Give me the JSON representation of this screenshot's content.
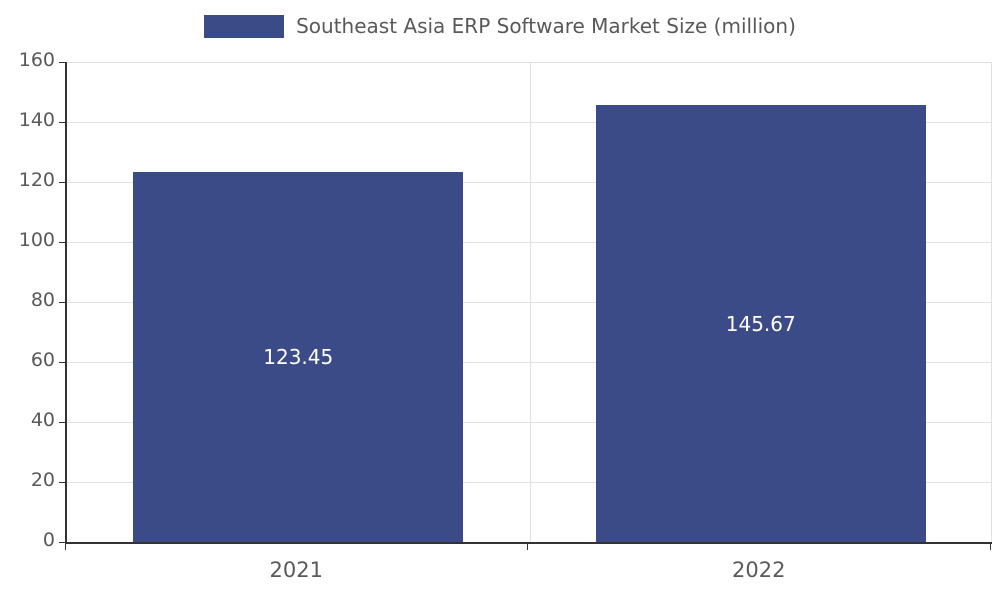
{
  "chart_data": {
    "type": "bar",
    "title": "Southeast Asia ERP Software Market Size (million)",
    "categories": [
      "2021",
      "2022"
    ],
    "values": [
      123.45,
      145.67
    ],
    "value_labels": [
      "123.45",
      "145.67"
    ],
    "xlabel": "",
    "ylabel": "",
    "ylim": [
      0,
      160
    ],
    "ytick_step": 20,
    "yticks": [
      "0",
      "20",
      "40",
      "60",
      "80",
      "100",
      "120",
      "140",
      "160"
    ],
    "bar_color": "#3b4b88",
    "value_label_color": "#ffffff",
    "axis_text_color": "#595959",
    "grid": true,
    "legend_position": "top"
  },
  "legend": {
    "label": "Southeast Asia ERP Software Market Size (million)"
  }
}
